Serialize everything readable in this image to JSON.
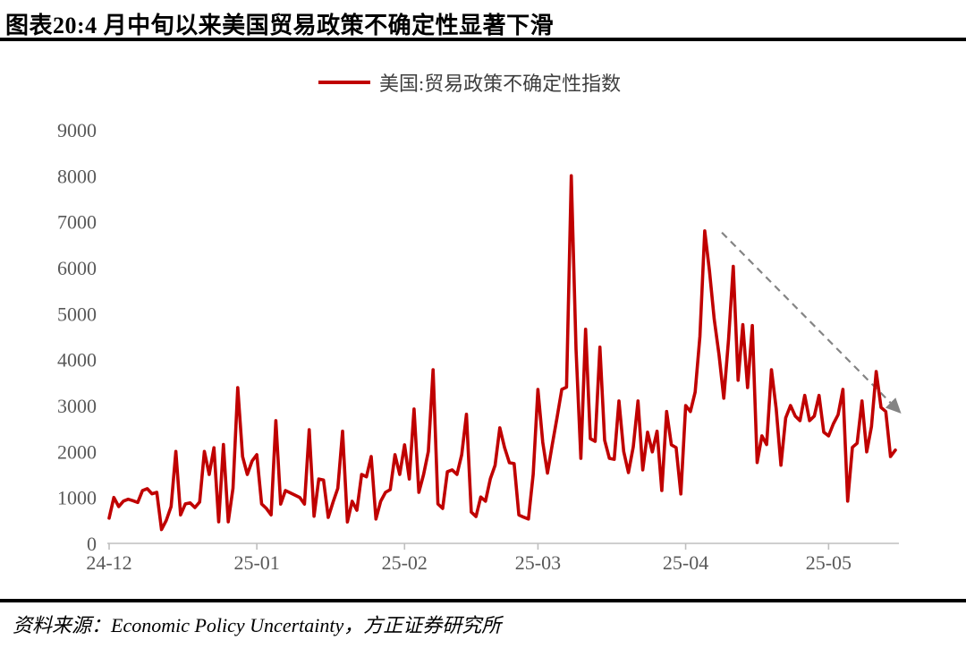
{
  "figure": {
    "title": "图表20:4 月中旬以来美国贸易政策不确定性显著下滑",
    "source": "资料来源：Economic Policy Uncertainty，方正证券研究所"
  },
  "legend": {
    "series_label": "美国:贸易政策不确定性指数"
  },
  "colors": {
    "series": "#C00000",
    "axis": "#BFBFBF",
    "tick_label": "#595959",
    "arrow": "#848484",
    "title_text": "#000000"
  },
  "chart_data": {
    "type": "line",
    "title": "图表20:4 月中旬以来美国贸易政策不确定性显著下滑",
    "series_name": "美国:贸易政策不确定性指数",
    "start_date": "2024-12-01",
    "frequency": "daily",
    "grid": false,
    "legend_position": "top-center",
    "xlabel": "",
    "ylabel": "",
    "ylim": [
      0,
      9000
    ],
    "y_ticks": [
      0,
      1000,
      2000,
      3000,
      4000,
      5000,
      6000,
      7000,
      8000,
      9000
    ],
    "x_tick_labels": [
      "24-12",
      "25-01",
      "25-02",
      "25-03",
      "25-04",
      "25-05"
    ],
    "x_tick_days": [
      0,
      31,
      62,
      90,
      121,
      151
    ],
    "values": [
      550,
      1000,
      800,
      920,
      960,
      930,
      890,
      1150,
      1190,
      1080,
      1110,
      300,
      500,
      800,
      2000,
      620,
      860,
      880,
      780,
      900,
      2000,
      1500,
      2080,
      470,
      2150,
      470,
      1200,
      3390,
      1890,
      1500,
      1790,
      1930,
      860,
      760,
      620,
      2670,
      855,
      1150,
      1100,
      1050,
      1000,
      855,
      2475,
      590,
      1400,
      1380,
      565,
      900,
      1200,
      2440,
      465,
      915,
      720,
      1500,
      1450,
      1890,
      530,
      915,
      1110,
      1170,
      1930,
      1500,
      2145,
      1400,
      2925,
      1110,
      1500,
      2000,
      3780,
      860,
      760,
      1560,
      1600,
      1500,
      1930,
      2810,
      680,
      585,
      1010,
      917,
      1404,
      1696,
      2515,
      2086,
      1755,
      1735,
      620,
      570,
      530,
      1500,
      3350,
      2200,
      1530,
      2145,
      2730,
      3350,
      3400,
      8000,
      4230,
      1850,
      4660,
      2280,
      2220,
      4270,
      2245,
      1850,
      1830,
      3100,
      2000,
      1540,
      2100,
      3100,
      1600,
      2420,
      1990,
      2440,
      1150,
      2870,
      2145,
      2085,
      1075,
      3000,
      2870,
      3295,
      4500,
      6800,
      5930,
      4880,
      4100,
      3160,
      4430,
      6030,
      3550,
      4760,
      3390,
      4740,
      1760,
      2340,
      2150,
      3780,
      2930,
      1700,
      2730,
      3000,
      2770,
      2670,
      3220,
      2670,
      2770,
      3220,
      2420,
      2340,
      2600,
      2800,
      3350,
      920,
      2090,
      2180,
      3100,
      1990,
      2540,
      3740,
      2960,
      2870,
      1890,
      2030
    ],
    "annotation_arrow": {
      "style": "dashed",
      "from": {
        "day": 128.6,
        "value": 6765
      },
      "to": {
        "day": 164,
        "value": 3060
      }
    }
  }
}
